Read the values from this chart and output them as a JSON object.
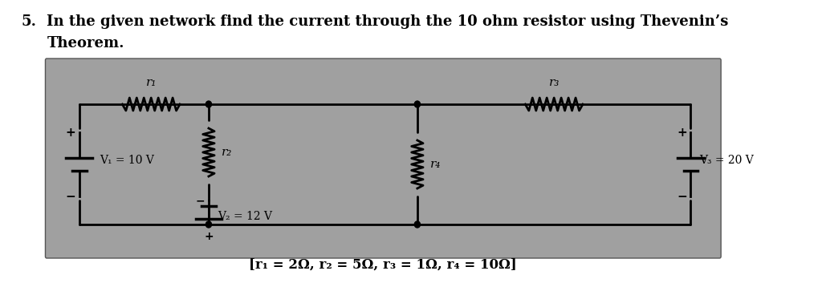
{
  "title_number": "5.",
  "title_text": "In the given network find the current through the 10 ohm resistor using Thevenin’s",
  "subtitle_text": "Theorem.",
  "bg_color": "#b0b0b0",
  "outer_bg": "#ffffff",
  "circuit_bg": "#a8a8a8",
  "values_text": "[r₁ = 2Ω, r₂ = 5Ω, r₃ = 1Ω, r₄ = 10Ω]",
  "V1_label": "V₁ = 10 V",
  "V2_label": "V₂ = 12 V",
  "V3_label": "V₃ = 20 V",
  "r1_label": "r₁",
  "r2_label": "r₂",
  "r3_label": "r₃",
  "r4_label": "r₄"
}
